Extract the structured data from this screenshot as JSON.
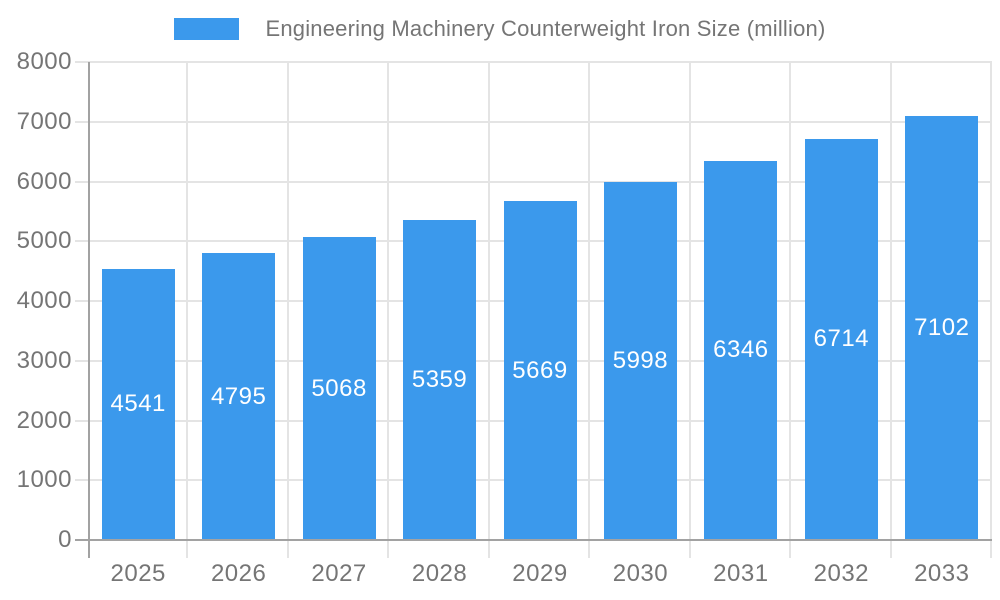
{
  "legend": {
    "label": "Engineering Machinery Counterweight Iron Size (million)",
    "swatch_color": "#3B99EC"
  },
  "colors": {
    "bar": "#3B99EC",
    "grid": "#e4e4e4",
    "axis": "#a2a2a2",
    "text": "#757575",
    "background": "#ffffff",
    "value_label": "#ffffff"
  },
  "chart_data": {
    "type": "bar",
    "title": "Engineering Machinery Counterweight Iron Size (million)",
    "categories": [
      "2025",
      "2026",
      "2027",
      "2028",
      "2029",
      "2030",
      "2031",
      "2032",
      "2033"
    ],
    "series": [
      {
        "name": "Engineering Machinery Counterweight Iron Size (million)",
        "values": [
          4541,
          4795,
          5068,
          5359,
          5669,
          5998,
          6346,
          6714,
          7102
        ]
      }
    ],
    "xlabel": "",
    "ylabel": "",
    "ylim": [
      0,
      8000
    ],
    "yticks": [
      0,
      1000,
      2000,
      3000,
      4000,
      5000,
      6000,
      7000,
      8000
    ],
    "grid": true,
    "legend_position": "top",
    "value_labels": "inside-center"
  }
}
